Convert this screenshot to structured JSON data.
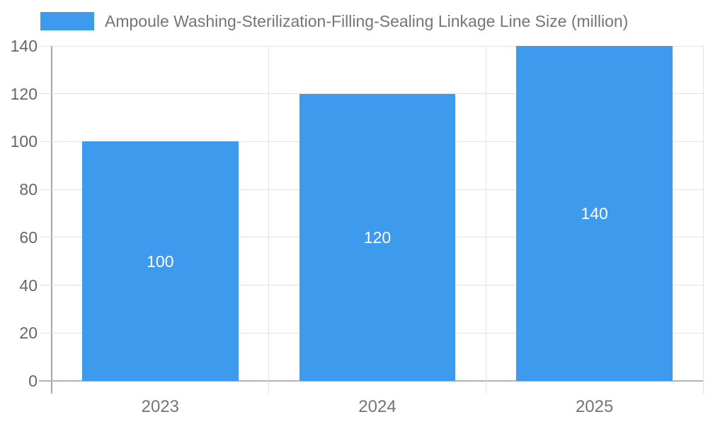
{
  "legend": {
    "swatch_color": "#3d9aec",
    "label": "Ampoule Washing-Sterilization-Filling-Sealing Linkage Line Size (million)"
  },
  "chart_data": {
    "type": "bar",
    "title": "Ampoule Washing-Sterilization-Filling-Sealing Linkage Line Size (million)",
    "categories": [
      "2023",
      "2024",
      "2025"
    ],
    "values": [
      100,
      120,
      140
    ],
    "series": [
      {
        "name": "Ampoule Washing-Sterilization-Filling-Sealing Linkage Line Size (million)",
        "values": [
          100,
          120,
          140
        ]
      }
    ],
    "xlabel": "",
    "ylabel": "",
    "ylim": [
      0,
      140
    ],
    "ytick_step": 20,
    "ytick_labels": [
      "0",
      "20",
      "40",
      "60",
      "80",
      "100",
      "120",
      "140"
    ],
    "grid": true,
    "legend_position": "top-left",
    "bar_color": "#3d9aec",
    "bar_width_ratio": 0.72,
    "value_label_color": "#ffffff",
    "value_label_position": "inside-center"
  },
  "colors": {
    "background": "#ffffff",
    "grid": "#e2e2e2",
    "axis_line": "#a6a6a6",
    "baseline": "#b3b3b3",
    "axis_text": "#666666",
    "category_text": "#757575",
    "legend_text": "#757575"
  }
}
